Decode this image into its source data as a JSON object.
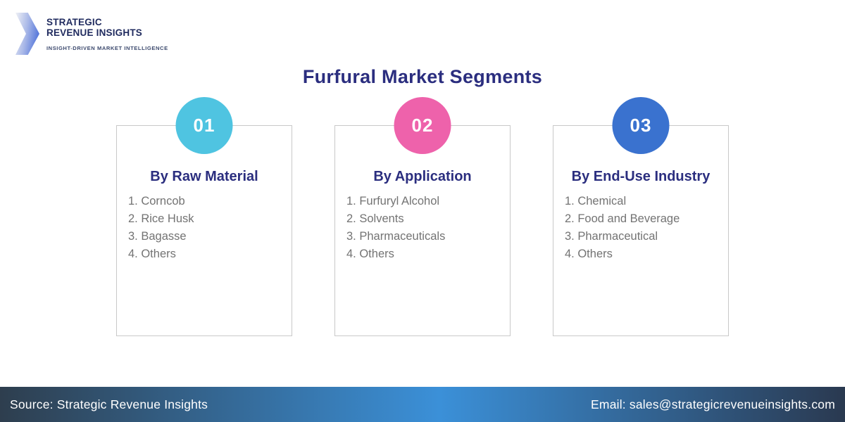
{
  "logo": {
    "brand_line1": "STRATEGIC",
    "brand_line2": "REVENUE INSIGHTS",
    "tagline": "INSIGHT-DRIVEN MARKET INTELLIGENCE"
  },
  "title": "Furfural Market Segments",
  "cards": [
    {
      "number": "01",
      "accent": "#4fc4e1",
      "heading": "By Raw Material",
      "items": [
        "1. Corncob",
        "2. Rice Husk",
        "3. Bagasse",
        "4. Others"
      ]
    },
    {
      "number": "02",
      "accent": "#ee62ab",
      "heading": "By Application",
      "items": [
        "1. Furfuryl Alcohol",
        "2. Solvents",
        "3. Pharmaceuticals",
        "4. Others"
      ]
    },
    {
      "number": "03",
      "accent": "#3a72cf",
      "heading": "By End-Use Industry",
      "items": [
        "1. Chemical",
        "2. Food and Beverage",
        "3. Pharmaceutical",
        "4. Others"
      ]
    }
  ],
  "footer": {
    "source": "Source: Strategic Revenue Insights",
    "email": "Email: sales@strategicrevenueinsights.com"
  },
  "colors": {
    "title_navy": "#2b2e7f",
    "list_gray": "#737373",
    "card_border": "#c9c9c9",
    "footer_gradient_left": "#2e3e4e",
    "footer_gradient_mid": "#3b90d8",
    "footer_gradient_right": "#2a3950"
  }
}
